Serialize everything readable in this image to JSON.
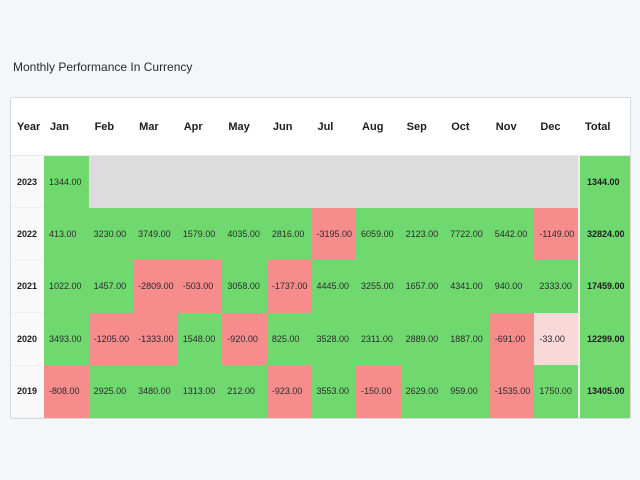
{
  "page": {
    "title": "Monthly Performance In Currency",
    "background": "#f3f7fa"
  },
  "colors": {
    "positive": "#6fd96f",
    "negative": "#f78c8c",
    "negative_light": "#f8d8d9",
    "empty": "#dcdcdc",
    "year_bg": "#f9f9f9",
    "card_border": "#d9d9d9",
    "total_separator": "#f0f0f0"
  },
  "table": {
    "columns": [
      "Year",
      "Jan",
      "Feb",
      "Mar",
      "Apr",
      "May",
      "Jun",
      "Jul",
      "Aug",
      "Sep",
      "Oct",
      "Nov",
      "Dec",
      "Total"
    ],
    "rows": [
      {
        "year": "2023",
        "months": [
          {
            "value": "1344.00",
            "state": "positive"
          },
          {
            "value": "",
            "state": "empty"
          },
          {
            "value": "",
            "state": "empty"
          },
          {
            "value": "",
            "state": "empty"
          },
          {
            "value": "",
            "state": "empty"
          },
          {
            "value": "",
            "state": "empty"
          },
          {
            "value": "",
            "state": "empty"
          },
          {
            "value": "",
            "state": "empty"
          },
          {
            "value": "",
            "state": "empty"
          },
          {
            "value": "",
            "state": "empty"
          },
          {
            "value": "",
            "state": "empty"
          },
          {
            "value": "",
            "state": "empty"
          }
        ],
        "total": {
          "value": "1344.00",
          "state": "positive"
        }
      },
      {
        "year": "2022",
        "months": [
          {
            "value": "413.00",
            "state": "positive"
          },
          {
            "value": "3230.00",
            "state": "positive"
          },
          {
            "value": "3749.00",
            "state": "positive"
          },
          {
            "value": "1579.00",
            "state": "positive"
          },
          {
            "value": "4035.00",
            "state": "positive"
          },
          {
            "value": "2816.00",
            "state": "positive"
          },
          {
            "value": "-3195.00",
            "state": "negative"
          },
          {
            "value": "6059.00",
            "state": "positive"
          },
          {
            "value": "2123.00",
            "state": "positive"
          },
          {
            "value": "7722.00",
            "state": "positive"
          },
          {
            "value": "5442.00",
            "state": "positive"
          },
          {
            "value": "-1149.00",
            "state": "negative"
          }
        ],
        "total": {
          "value": "32824.00",
          "state": "positive"
        }
      },
      {
        "year": "2021",
        "months": [
          {
            "value": "1022.00",
            "state": "positive"
          },
          {
            "value": "1457.00",
            "state": "positive"
          },
          {
            "value": "-2809.00",
            "state": "negative"
          },
          {
            "value": "-503.00",
            "state": "negative"
          },
          {
            "value": "3058.00",
            "state": "positive"
          },
          {
            "value": "-1737.00",
            "state": "negative"
          },
          {
            "value": "4445.00",
            "state": "positive"
          },
          {
            "value": "3255.00",
            "state": "positive"
          },
          {
            "value": "1657.00",
            "state": "positive"
          },
          {
            "value": "4341.00",
            "state": "positive"
          },
          {
            "value": "940.00",
            "state": "positive"
          },
          {
            "value": "2333.00",
            "state": "positive"
          }
        ],
        "total": {
          "value": "17459.00",
          "state": "positive"
        }
      },
      {
        "year": "2020",
        "months": [
          {
            "value": "3493.00",
            "state": "positive"
          },
          {
            "value": "-1205.00",
            "state": "negative"
          },
          {
            "value": "-1333.00",
            "state": "negative"
          },
          {
            "value": "1548.00",
            "state": "positive"
          },
          {
            "value": "-920.00",
            "state": "negative"
          },
          {
            "value": "825.00",
            "state": "positive"
          },
          {
            "value": "3528.00",
            "state": "positive"
          },
          {
            "value": "2311.00",
            "state": "positive"
          },
          {
            "value": "2889.00",
            "state": "positive"
          },
          {
            "value": "1887.00",
            "state": "positive"
          },
          {
            "value": "-691.00",
            "state": "negative"
          },
          {
            "value": "-33.00",
            "state": "negative_light"
          }
        ],
        "total": {
          "value": "12299.00",
          "state": "positive"
        }
      },
      {
        "year": "2019",
        "months": [
          {
            "value": "-808.00",
            "state": "negative"
          },
          {
            "value": "2925.00",
            "state": "positive"
          },
          {
            "value": "3480.00",
            "state": "positive"
          },
          {
            "value": "1313.00",
            "state": "positive"
          },
          {
            "value": "212.00",
            "state": "positive"
          },
          {
            "value": "-923.00",
            "state": "negative"
          },
          {
            "value": "3553.00",
            "state": "positive"
          },
          {
            "value": "-150.00",
            "state": "negative"
          },
          {
            "value": "2629.00",
            "state": "positive"
          },
          {
            "value": "959.00",
            "state": "positive"
          },
          {
            "value": "-1535.00",
            "state": "negative"
          },
          {
            "value": "1750.00",
            "state": "positive"
          }
        ],
        "total": {
          "value": "13405.00",
          "state": "positive"
        }
      }
    ]
  },
  "chart_data": {
    "type": "heatmap",
    "title": "Monthly Performance In Currency",
    "categories": [
      "Jan",
      "Feb",
      "Mar",
      "Apr",
      "May",
      "Jun",
      "Jul",
      "Aug",
      "Sep",
      "Oct",
      "Nov",
      "Dec"
    ],
    "series": [
      {
        "name": "2023",
        "values": [
          1344.0,
          null,
          null,
          null,
          null,
          null,
          null,
          null,
          null,
          null,
          null,
          null
        ],
        "total": 1344.0
      },
      {
        "name": "2022",
        "values": [
          413.0,
          3230.0,
          3749.0,
          1579.0,
          4035.0,
          2816.0,
          -3195.0,
          6059.0,
          2123.0,
          7722.0,
          5442.0,
          -1149.0
        ],
        "total": 32824.0
      },
      {
        "name": "2021",
        "values": [
          1022.0,
          1457.0,
          -2809.0,
          -503.0,
          3058.0,
          -1737.0,
          4445.0,
          3255.0,
          1657.0,
          4341.0,
          940.0,
          2333.0
        ],
        "total": 17459.0
      },
      {
        "name": "2020",
        "values": [
          3493.0,
          -1205.0,
          -1333.0,
          1548.0,
          -920.0,
          825.0,
          3528.0,
          2311.0,
          2889.0,
          1887.0,
          -691.0,
          -33.0
        ],
        "total": 12299.0
      },
      {
        "name": "2019",
        "values": [
          -808.0,
          2925.0,
          3480.0,
          1313.0,
          212.0,
          -923.0,
          3553.0,
          -150.0,
          2629.0,
          959.0,
          -1535.0,
          1750.0
        ],
        "total": 13405.0
      }
    ],
    "legend": "green = positive month, red = negative month, gray = no data"
  }
}
